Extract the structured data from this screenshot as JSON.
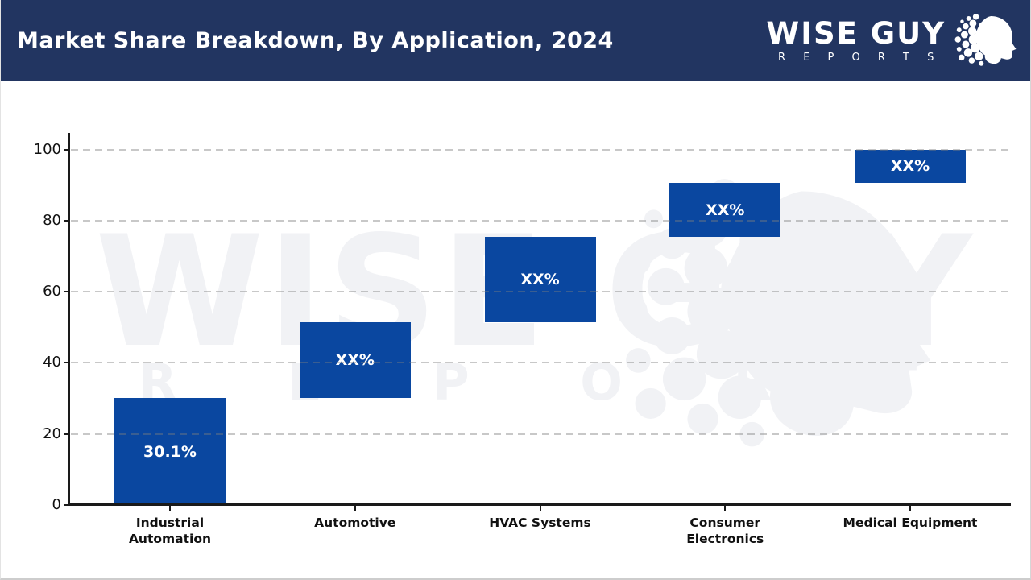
{
  "header": {
    "title": "Market Share Breakdown, By Application, 2024",
    "logo": {
      "line1": "WISE GUY",
      "line2": "R E P O R T S"
    },
    "bg_color": "#223561"
  },
  "watermark": {
    "line1": "WISE GUY",
    "line2": "R E P O R T S"
  },
  "chart_data": {
    "type": "bar",
    "subtype": "waterfall",
    "title": "Market Share Breakdown, By Application, 2024",
    "xlabel": "",
    "ylabel": "",
    "categories": [
      "Industrial Automation",
      "Automotive",
      "HVAC Systems",
      "Consumer Electronics",
      "Medical Equipment"
    ],
    "category_lines": [
      [
        "Industrial",
        "Automation"
      ],
      [
        "Automotive"
      ],
      [
        "HVAC Systems"
      ],
      [
        "Consumer",
        "Electronics"
      ],
      [
        "Medical Equipment"
      ]
    ],
    "series": [
      {
        "category": "Industrial Automation",
        "start": 0,
        "end": 30.1,
        "label": "30.1%"
      },
      {
        "category": "Automotive",
        "start": 30.1,
        "end": 51.5,
        "label": "XX%"
      },
      {
        "category": "HVAC Systems",
        "start": 51.5,
        "end": 75.4,
        "label": "XX%"
      },
      {
        "category": "Consumer Electronics",
        "start": 75.4,
        "end": 90.6,
        "label": "XX%"
      },
      {
        "category": "Medical Equipment",
        "start": 90.6,
        "end": 100,
        "label": "XX%"
      }
    ],
    "yticks": [
      0,
      20,
      40,
      60,
      80,
      100
    ],
    "ylim": [
      0,
      104.5
    ],
    "grid": "dashed horizontal",
    "legend": "none",
    "bar_color": "#0a47a0",
    "label_color": "#ffffff"
  }
}
